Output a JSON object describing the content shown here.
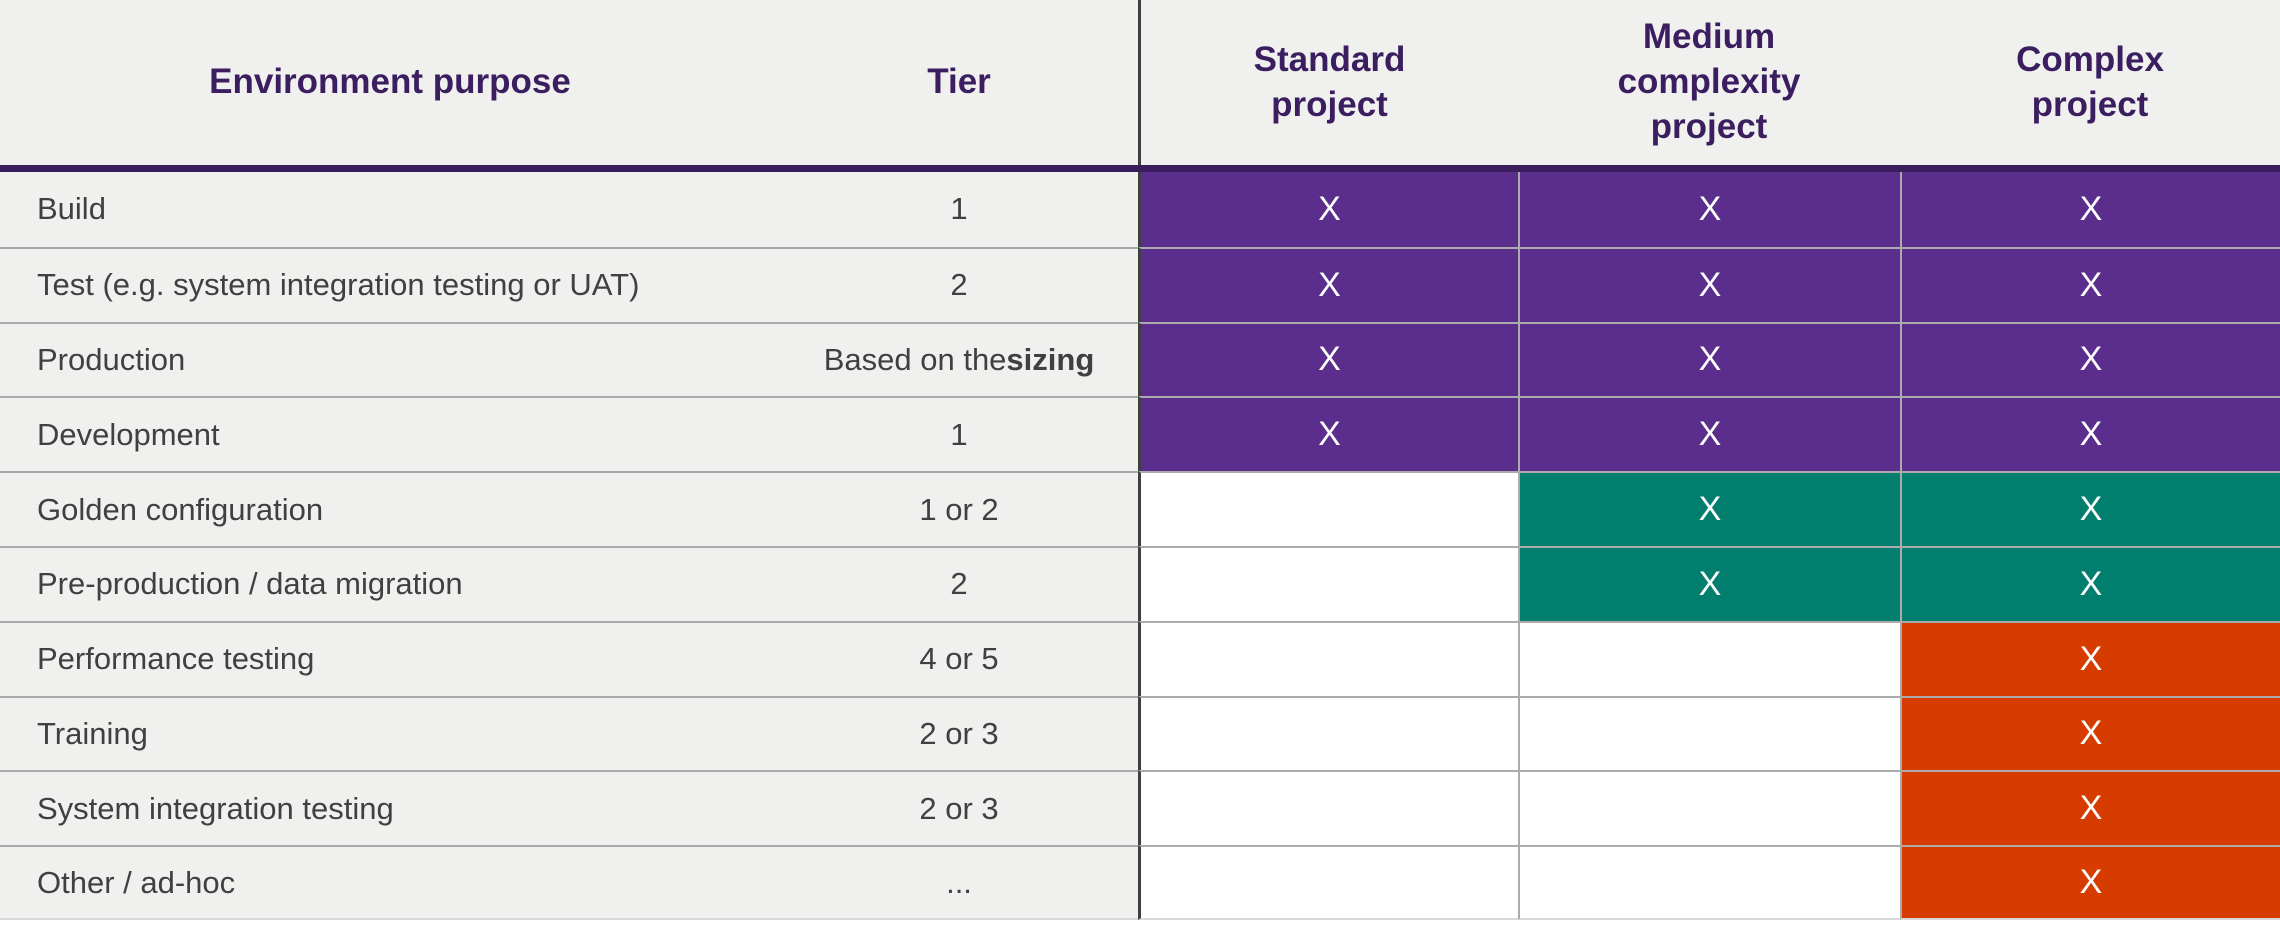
{
  "table": {
    "mark": "X",
    "left_header": {
      "purpose": "Environment purpose",
      "tier": "Tier"
    },
    "right_header": {
      "standard": "Standard project",
      "medium": "Medium complexity project",
      "complex": "Complex project"
    },
    "rows": [
      {
        "purpose": "Build",
        "tier": "1",
        "tier_bold": "",
        "cells": [
          "purple",
          "purple",
          "purple"
        ]
      },
      {
        "purpose": "Test (e.g. system integration testing or UAT)",
        "tier": "2",
        "tier_bold": "",
        "cells": [
          "purple",
          "purple",
          "purple"
        ]
      },
      {
        "purpose": "Production",
        "tier": "Based on the ",
        "tier_bold": "sizing",
        "cells": [
          "purple",
          "purple",
          "purple"
        ]
      },
      {
        "purpose": "Development",
        "tier": "1",
        "tier_bold": "",
        "cells": [
          "purple",
          "purple",
          "purple"
        ]
      },
      {
        "purpose": "Golden configuration",
        "tier": "1 or 2",
        "tier_bold": "",
        "cells": [
          "empty",
          "teal",
          "teal"
        ]
      },
      {
        "purpose": "Pre-production / data migration",
        "tier": "2",
        "tier_bold": "",
        "cells": [
          "empty",
          "teal",
          "teal"
        ]
      },
      {
        "purpose": "Performance testing",
        "tier": "4 or 5",
        "tier_bold": "",
        "cells": [
          "empty",
          "empty",
          "orange"
        ]
      },
      {
        "purpose": "Training",
        "tier": "2 or 3",
        "tier_bold": "",
        "cells": [
          "empty",
          "empty",
          "orange"
        ]
      },
      {
        "purpose": "System integration testing",
        "tier": "2 or 3",
        "tier_bold": "",
        "cells": [
          "empty",
          "empty",
          "orange"
        ]
      },
      {
        "purpose": "Other / ad-hoc",
        "tier": "...",
        "tier_bold": "",
        "cells": [
          "empty",
          "empty",
          "orange"
        ]
      }
    ]
  },
  "colors": {
    "purple": "#5B2D8C",
    "teal": "#027E6F",
    "orange": "#D63C00",
    "header_text": "#3B1E5F",
    "header_line": "#3A1D5B",
    "body_text": "#404040",
    "left_background": "#F0F0EF",
    "grid_line": "#ABABAB",
    "vertical_divider": "#3F3F3F",
    "mark_text": "#FFFFFF"
  }
}
